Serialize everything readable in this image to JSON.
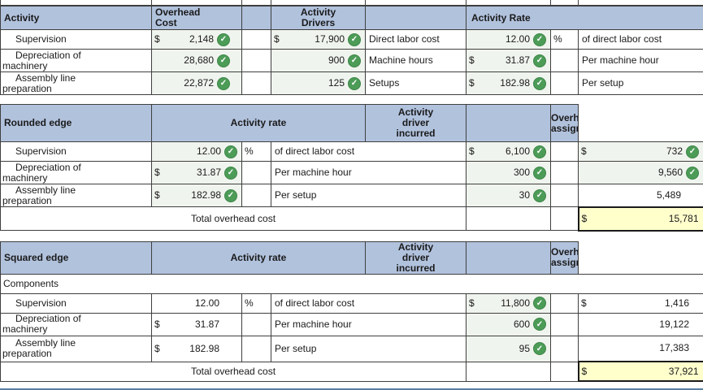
{
  "colors": {
    "header_bg": "#b1c2dd",
    "entered_cell_bg": "#f0f4ee",
    "total_cell_bg": "#ffffcc",
    "check_green": "#4c9c57",
    "bottom_bar_blue": "#84b1de"
  },
  "icons": {
    "check": "✓"
  },
  "table1": {
    "headers": {
      "activity": "Activity",
      "overhead_cost": "Overhead Cost",
      "activity_drivers": "Activity Drivers",
      "activity_rate": "Activity Rate"
    },
    "rows": [
      {
        "label": "Supervision",
        "cost_cur": "$",
        "cost": "2,148",
        "driver_cur": "$",
        "driver": "17,900",
        "driver_name": "Direct labor cost",
        "rate_cur": "",
        "rate": "12.00",
        "pct": "%",
        "unit": "of direct labor cost"
      },
      {
        "label": "Depreciation of machinery",
        "cost_cur": "",
        "cost": "28,680",
        "driver_cur": "",
        "driver": "900",
        "driver_name": "Machine hours",
        "rate_cur": "$",
        "rate": "31.87",
        "pct": "",
        "unit": "Per machine hour"
      },
      {
        "label": "Assembly line preparation",
        "cost_cur": "",
        "cost": "22,872",
        "driver_cur": "",
        "driver": "125",
        "driver_name": "Setups",
        "rate_cur": "$",
        "rate": "182.98",
        "pct": "",
        "unit": "Per setup"
      }
    ]
  },
  "table2": {
    "title": "Rounded edge",
    "headers": {
      "activity_rate": "Activity rate",
      "driver_incurred": "Activity driver incurred",
      "overhead_assigned": "Overhead assigned"
    },
    "rows": [
      {
        "label": "Supervision",
        "rate_cur": "",
        "rate": "12.00",
        "pct": "%",
        "unit": "of direct labor cost",
        "incurred_cur": "$",
        "incurred": "6,100",
        "assigned_cur": "$",
        "assigned": "732"
      },
      {
        "label": "Depreciation of machinery",
        "rate_cur": "$",
        "rate": "31.87",
        "pct": "",
        "unit": "Per machine hour",
        "incurred_cur": "",
        "incurred": "300",
        "assigned_cur": "",
        "assigned": "9,560"
      },
      {
        "label": "Assembly line preparation",
        "rate_cur": "$",
        "rate": "182.98",
        "pct": "",
        "unit": "Per setup",
        "incurred_cur": "",
        "incurred": "30",
        "assigned_cur": "",
        "assigned": "5,489"
      }
    ],
    "total": {
      "label": "Total overhead cost",
      "cur": "$",
      "value": "15,781"
    }
  },
  "table3": {
    "title": "Squared edge",
    "subtitle": "Components",
    "headers": {
      "activity_rate": "Activity rate",
      "driver_incurred": "Activity driver incurred",
      "overhead_assigned": "Overhead assigned"
    },
    "rows": [
      {
        "label": "Supervision",
        "rate_cur": "",
        "rate": "12.00",
        "pct": "%",
        "unit": "of direct labor cost",
        "incurred_cur": "$",
        "incurred": "11,800",
        "assigned_cur": "$",
        "assigned": "1,416"
      },
      {
        "label": "Depreciation of machinery",
        "rate_cur": "$",
        "rate": "31.87",
        "pct": "",
        "unit": "Per machine hour",
        "incurred_cur": "",
        "incurred": "600",
        "assigned_cur": "",
        "assigned": "19,122"
      },
      {
        "label": "Assembly line preparation",
        "rate_cur": "$",
        "rate": "182.98",
        "pct": "",
        "unit": "Per setup",
        "incurred_cur": "",
        "incurred": "95",
        "assigned_cur": "",
        "assigned": "17,383"
      }
    ],
    "total": {
      "label": "Total overhead cost",
      "cur": "$",
      "value": "37,921"
    }
  }
}
